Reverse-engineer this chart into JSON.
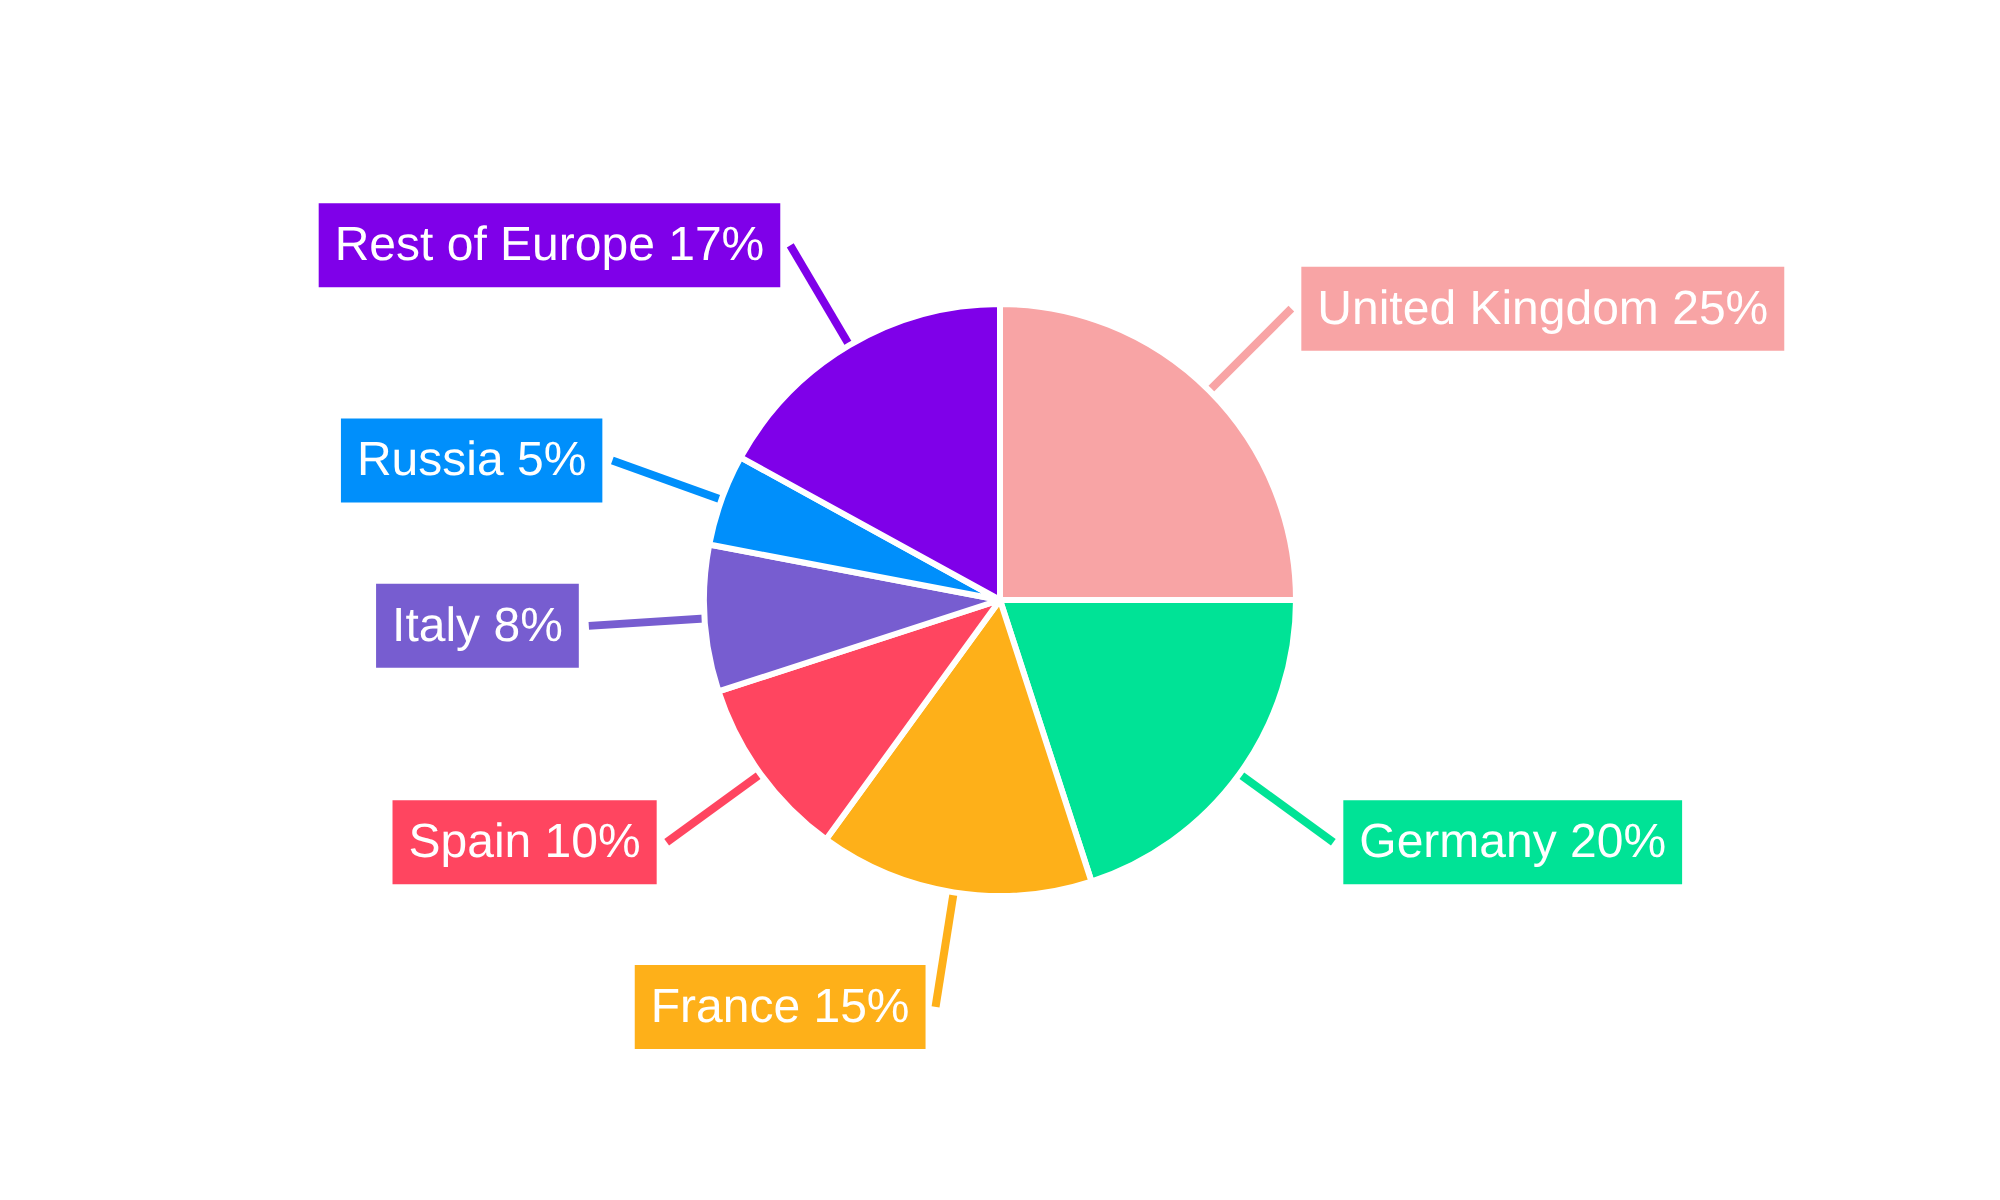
{
  "chart_data": {
    "type": "pie",
    "categories": [
      "United Kingdom",
      "Germany",
      "France",
      "Spain",
      "Italy",
      "Russia",
      "Rest of Europe"
    ],
    "values": [
      25,
      20,
      15,
      10,
      8,
      5,
      17
    ],
    "value_labels": [
      "25%",
      "20%",
      "15%",
      "10%",
      "8%",
      "5%",
      "17%"
    ],
    "colors": [
      "#f8a4a5",
      "#00e396",
      "#feb019",
      "#ff4560",
      "#775dd0",
      "#008ffb",
      "#7f00e9"
    ],
    "legend": false
  }
}
